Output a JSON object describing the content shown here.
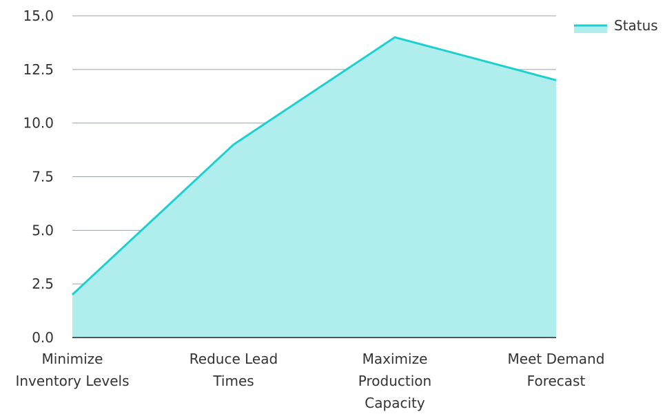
{
  "colors": {
    "line": "#1fcfcf",
    "fill": "#b0eeee",
    "grid": "#9aa3aa",
    "axis": "#222222",
    "text": "#333333"
  },
  "legend": {
    "label": "Status",
    "position": "top-right"
  },
  "chart_data": {
    "type": "area",
    "categories": [
      "Minimize Inventory Levels",
      "Reduce Lead Times",
      "Maximize Production Capacity",
      "Meet Demand Forecast"
    ],
    "category_label_lines": [
      [
        "Minimize",
        "Inventory Levels"
      ],
      [
        "Reduce Lead",
        "Times"
      ],
      [
        "Maximize",
        "Production",
        "Capacity"
      ],
      [
        "Meet Demand",
        "Forecast"
      ]
    ],
    "series": [
      {
        "name": "Status",
        "values": [
          2,
          9,
          14,
          12
        ]
      }
    ],
    "title": "",
    "xlabel": "",
    "ylabel": "",
    "ylim": [
      0,
      15
    ],
    "yticks": [
      0,
      2.5,
      5,
      7.5,
      10,
      12.5,
      15
    ],
    "ytick_labels": [
      "0.0",
      "2.5",
      "5.0",
      "7.5",
      "10.0",
      "12.5",
      "15.0"
    ],
    "grid": true
  }
}
